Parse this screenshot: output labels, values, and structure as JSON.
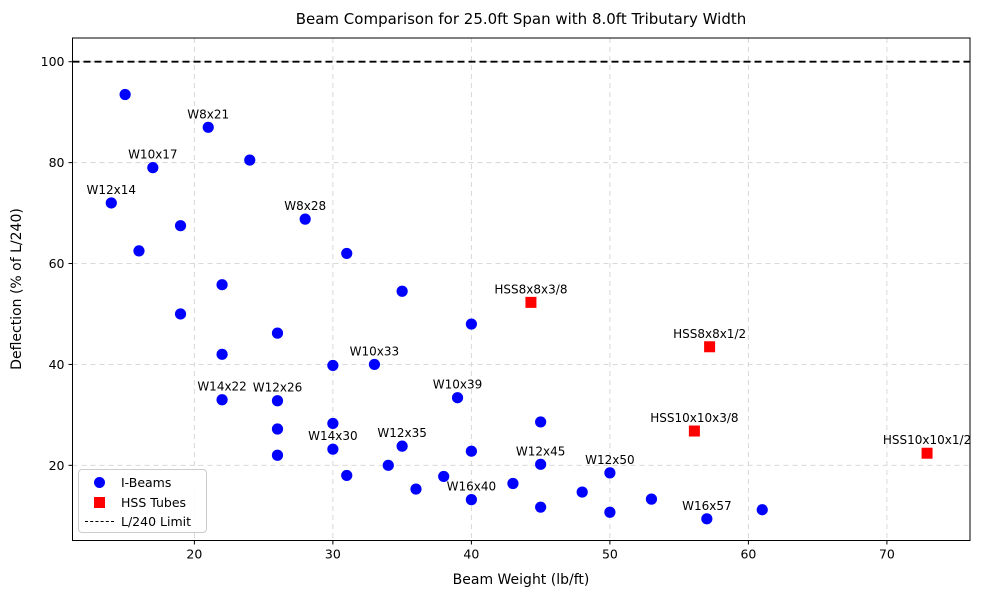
{
  "chart_data": {
    "type": "scatter",
    "title": "Beam Comparison for 25.0ft Span with 8.0ft Tributary Width",
    "xlabel": "Beam Weight (lb/ft)",
    "ylabel": "Deflection (% of L/240)",
    "xlim": [
      11.2,
      76.0
    ],
    "ylim": [
      5.1,
      104.7
    ],
    "xticks": [
      20,
      30,
      40,
      50,
      60,
      70
    ],
    "yticks": [
      20,
      40,
      60,
      80,
      100
    ],
    "grid": true,
    "legend_position": "lower-left",
    "limit_line": {
      "y": 100,
      "label": "L/240 Limit",
      "color": "#000000",
      "style": "dashed"
    },
    "series": [
      {
        "name": "I-Beams",
        "marker": "circle",
        "color": "#0000ff",
        "points": [
          {
            "x": 15,
            "y": 93.5
          },
          {
            "x": 21,
            "y": 87,
            "label": "W8x21"
          },
          {
            "x": 24,
            "y": 80.5
          },
          {
            "x": 17,
            "y": 79,
            "label": "W10x17"
          },
          {
            "x": 14,
            "y": 72,
            "label": "W12x14"
          },
          {
            "x": 28,
            "y": 68.8,
            "label": "W8x28"
          },
          {
            "x": 19,
            "y": 67.5
          },
          {
            "x": 16,
            "y": 62.5
          },
          {
            "x": 31,
            "y": 62
          },
          {
            "x": 22,
            "y": 55.8
          },
          {
            "x": 35,
            "y": 54.5
          },
          {
            "x": 19,
            "y": 50
          },
          {
            "x": 40,
            "y": 48
          },
          {
            "x": 26,
            "y": 46.2
          },
          {
            "x": 22,
            "y": 42
          },
          {
            "x": 33,
            "y": 40,
            "label": "W10x33"
          },
          {
            "x": 30,
            "y": 39.8
          },
          {
            "x": 39,
            "y": 33.4,
            "label": "W10x39"
          },
          {
            "x": 22,
            "y": 33,
            "label": "W14x22"
          },
          {
            "x": 26,
            "y": 32.8,
            "label": "W12x26"
          },
          {
            "x": 45,
            "y": 28.6
          },
          {
            "x": 30,
            "y": 28.3
          },
          {
            "x": 26,
            "y": 27.2
          },
          {
            "x": 35,
            "y": 23.8,
            "label": "W12x35"
          },
          {
            "x": 30,
            "y": 23.2,
            "label": "W14x30"
          },
          {
            "x": 40,
            "y": 22.8
          },
          {
            "x": 26,
            "y": 22
          },
          {
            "x": 45,
            "y": 20.2,
            "label": "W12x45"
          },
          {
            "x": 34,
            "y": 20
          },
          {
            "x": 50,
            "y": 18.5,
            "label": "W12x50"
          },
          {
            "x": 31,
            "y": 18
          },
          {
            "x": 38,
            "y": 17.8
          },
          {
            "x": 43,
            "y": 16.4
          },
          {
            "x": 36,
            "y": 15.3
          },
          {
            "x": 48,
            "y": 14.7
          },
          {
            "x": 40,
            "y": 13.2,
            "label": "W16x40"
          },
          {
            "x": 53,
            "y": 13.3
          },
          {
            "x": 45,
            "y": 11.7
          },
          {
            "x": 61,
            "y": 11.2
          },
          {
            "x": 50,
            "y": 10.7
          },
          {
            "x": 57,
            "y": 9.4,
            "label": "W16x57"
          }
        ]
      },
      {
        "name": "HSS Tubes",
        "marker": "square",
        "color": "#ff0000",
        "points": [
          {
            "x": 44.3,
            "y": 52.3,
            "label": "HSS8x8x3/8"
          },
          {
            "x": 57.2,
            "y": 43.5,
            "label": "HSS8x8x1/2"
          },
          {
            "x": 56.1,
            "y": 26.8,
            "label": "HSS10x10x3/8"
          },
          {
            "x": 72.9,
            "y": 22.4,
            "label": "HSS10x10x1/2"
          }
        ]
      }
    ]
  }
}
